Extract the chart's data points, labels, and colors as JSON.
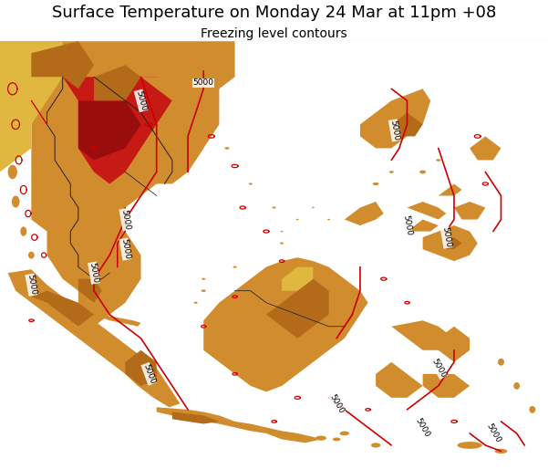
{
  "title": "Surface Temperature on Monday 24 Mar at 11pm +08",
  "subtitle": "Freezing level contours",
  "title_fontsize": 13,
  "subtitle_fontsize": 10,
  "header_bg": "#e8e8e8",
  "fig_width": 6.01,
  "fig_height": 5.14,
  "dpi": 100,
  "lon_min": 95,
  "lon_max": 130,
  "lat_min": -11,
  "lat_max": 25,
  "ocean_color": [
    0.714,
    0.796,
    0.902
  ],
  "land_orange": [
    0.82,
    0.55,
    0.18
  ],
  "land_dark_orange": [
    0.7,
    0.42,
    0.1
  ],
  "land_yellow": [
    0.88,
    0.72,
    0.25
  ],
  "land_red": [
    0.78,
    0.1,
    0.08
  ],
  "land_dark_red": [
    0.6,
    0.05,
    0.05
  ],
  "contour_color": "#cc0000",
  "border_color": "#222222",
  "contour_lw": 1.2,
  "border_lw": 0.7
}
